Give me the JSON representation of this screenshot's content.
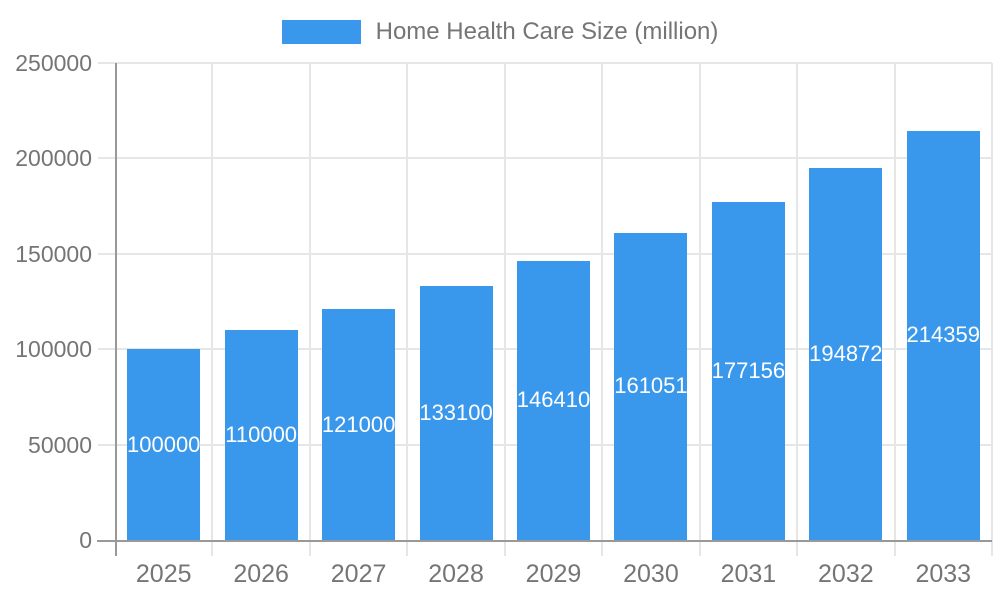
{
  "legend": {
    "label": "Home Health Care Size (million)"
  },
  "colors": {
    "bar": "#3998ec",
    "grid": "#e6e6e6",
    "axis": "#999999",
    "text": "#757575",
    "annotation": "#ffffff",
    "background": "#ffffff"
  },
  "chart_data": {
    "type": "bar",
    "title": "Home Health Care Size (million)",
    "categories": [
      "2025",
      "2026",
      "2027",
      "2028",
      "2029",
      "2030",
      "2031",
      "2032",
      "2033"
    ],
    "values": [
      100000,
      110000,
      121000,
      133100,
      146410,
      161051,
      177156,
      194872,
      214359
    ],
    "value_labels": [
      "100000",
      "110000",
      "121000",
      "133100",
      "146410",
      "161051",
      "177156",
      "194872",
      "214359"
    ],
    "xlabel": "",
    "ylabel": "",
    "ylim": [
      0,
      250000
    ],
    "yticks": [
      0,
      50000,
      100000,
      150000,
      200000,
      250000
    ],
    "ytick_labels": [
      "0",
      "50000",
      "100000",
      "150000",
      "200000",
      "250000"
    ],
    "grid": true,
    "legend_position": "top",
    "value_labels_inside_bars": true
  }
}
